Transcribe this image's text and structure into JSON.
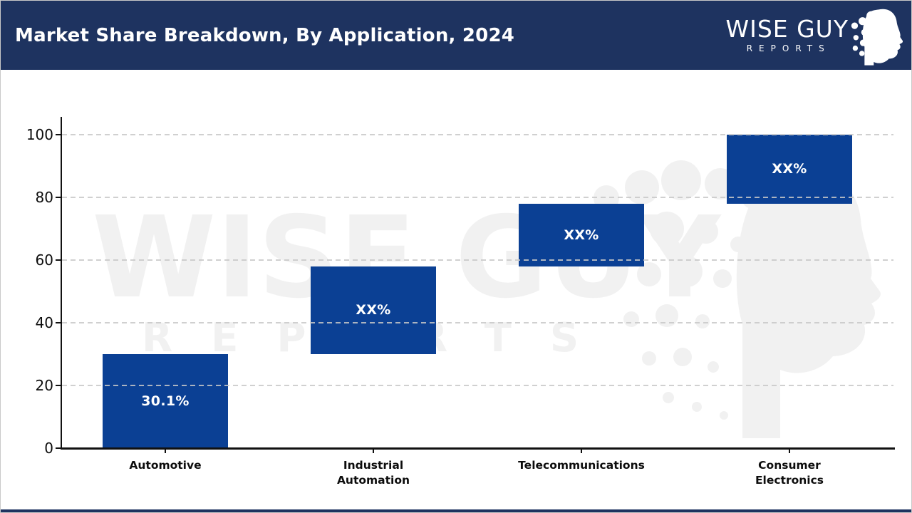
{
  "header": {
    "title": "Market Share Breakdown, By Application, 2024",
    "logo": {
      "brand_top": "WISE GUY",
      "brand_bottom": "REPORTS"
    }
  },
  "watermark": {
    "line1": "WISE GUY",
    "line2": "REPORTS"
  },
  "colors": {
    "header_bg": "#1e3360",
    "bar": "#0b4094",
    "grid": "#cbcbcb",
    "axis": "#111111",
    "watermark": "#f1f1f1",
    "label_on_bar": "#ffffff"
  },
  "chart_data": {
    "type": "bar",
    "subtype": "waterfall",
    "title": "Market Share Breakdown, By Application, 2024",
    "xlabel": "",
    "ylabel": "",
    "ylim": [
      0,
      100
    ],
    "yticks": [
      0,
      20,
      40,
      60,
      80,
      100
    ],
    "grid": "horizontal-dashed",
    "legend": "none",
    "categories": [
      "Automotive",
      "Industrial Automation",
      "Telecommunications",
      "Consumer Electronics"
    ],
    "bars": [
      {
        "category": "Automotive",
        "label": "30.1%",
        "start": 0,
        "end": 30.1
      },
      {
        "category": "Industrial Automation",
        "label": "XX%",
        "start": 30.1,
        "end": 58
      },
      {
        "category": "Telecommunications",
        "label": "XX%",
        "start": 58,
        "end": 78
      },
      {
        "category": "Consumer Electronics",
        "label": "XX%",
        "start": 78,
        "end": 100
      }
    ]
  }
}
